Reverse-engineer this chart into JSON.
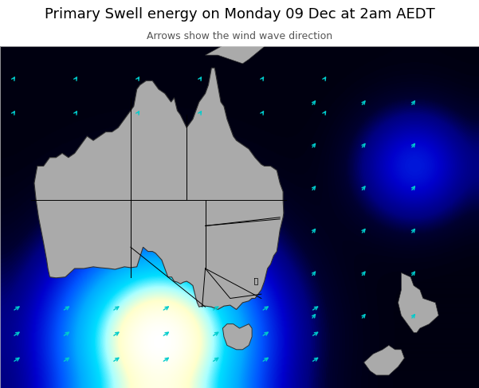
{
  "title": "Primary Swell energy on Monday 09 Dec at 2am AEDT",
  "subtitle": "Arrows show the wind wave direction",
  "title_fontsize": 13,
  "subtitle_fontsize": 9,
  "bg_color": "#ffffff",
  "map_bg": "#000010",
  "fig_width": 6.01,
  "fig_height": 4.87,
  "dpi": 100
}
